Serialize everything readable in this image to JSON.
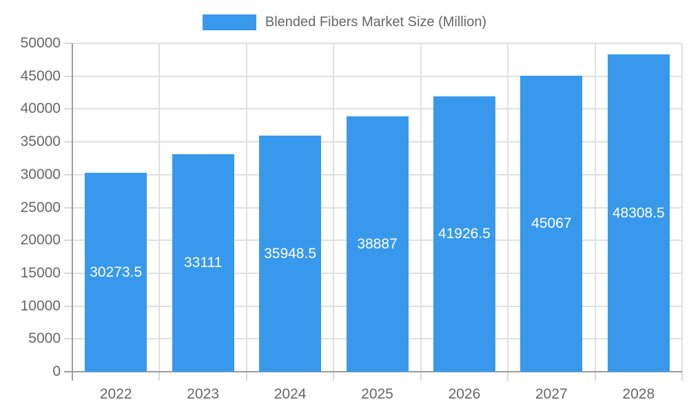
{
  "chart_data": {
    "type": "bar",
    "title": "",
    "legend": "Blended Fibers Market Size (Million)",
    "legend_position": "top",
    "categories": [
      "2022",
      "2023",
      "2024",
      "2025",
      "2026",
      "2027",
      "2028"
    ],
    "values": [
      30273.5,
      33111,
      35948.5,
      38887,
      41926.5,
      45067,
      48308.5
    ],
    "xlabel": "",
    "ylabel": "",
    "ylim": [
      0,
      50000
    ],
    "ytick_step": 5000,
    "grid": true,
    "bar_label_position": "inside-middle"
  },
  "colors": {
    "bar": "#3899EC",
    "bar_label_text": "#FFFFFF",
    "tick_label_text": "#666666",
    "legend_text": "#666666",
    "gridline": "#E0E0E0",
    "tick_mark": "#D8D8D8",
    "axis_line": "#9C9C9C",
    "background": "#FFFFFF"
  }
}
